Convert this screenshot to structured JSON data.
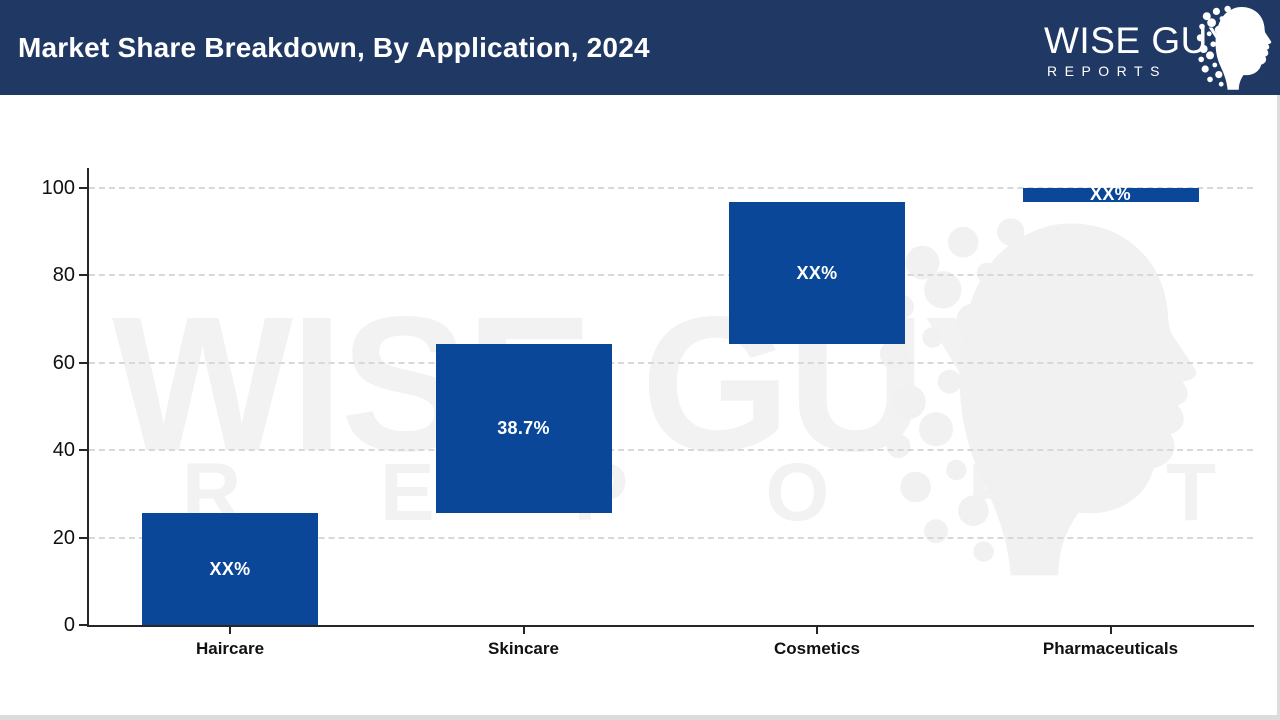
{
  "header": {
    "title": "Market Share Breakdown, By Application, 2024",
    "bg_color": "#203864",
    "logo": {
      "line1": "WISE GUY",
      "line2": "REPORTS"
    }
  },
  "watermark": {
    "line1": "WISE GUY",
    "line2": "R E P O R T S"
  },
  "chart_data": {
    "type": "bar",
    "subtype": "waterfall",
    "title": "Market Share Breakdown, By Application, 2024",
    "categories": [
      "Haircare",
      "Skincare",
      "Cosmetics",
      "Pharmaceuticals"
    ],
    "segments": [
      {
        "category": "Haircare",
        "start": 0,
        "end": 25.5,
        "value": 25.5,
        "label": "XX%"
      },
      {
        "category": "Skincare",
        "start": 25.5,
        "end": 64.2,
        "value": 38.7,
        "label": "38.7%"
      },
      {
        "category": "Cosmetics",
        "start": 64.2,
        "end": 96.7,
        "value": 32.5,
        "label": "XX%"
      },
      {
        "category": "Pharmaceuticals",
        "start": 96.7,
        "end": 100,
        "value": 3.3,
        "label": "XX%"
      }
    ],
    "yticks": [
      0,
      20,
      40,
      60,
      80,
      100
    ],
    "ylim": [
      0,
      105
    ],
    "xlabel": "",
    "ylabel": "",
    "bar_color": "#0a4799",
    "bar_label_color": "#ffffff",
    "grid": "horizontal dashed",
    "grid_color": "#d8d8d8",
    "legend": "none"
  }
}
